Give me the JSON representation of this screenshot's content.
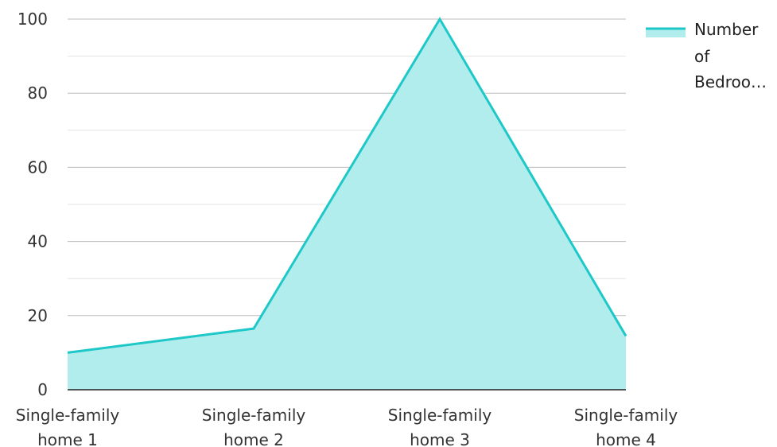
{
  "chart_data": {
    "type": "area",
    "categories": [
      [
        "Single-family",
        "home 1"
      ],
      [
        "Single-family",
        "home 2"
      ],
      [
        "Single-family",
        "home 3"
      ],
      [
        "Single-family",
        "home 4"
      ]
    ],
    "series": [
      {
        "name": "Number of Bedroo…",
        "values": [
          10,
          16.5,
          100,
          14.5
        ]
      }
    ],
    "legend": {
      "position": "top-right",
      "lines": [
        "Number",
        "of",
        "Bedroo…"
      ]
    },
    "yticks": [
      "0",
      "20",
      "40",
      "60",
      "80",
      "100"
    ],
    "ylim": [
      0,
      100
    ],
    "grid": true,
    "colors": {
      "line": "#1ec8c8",
      "fill": "#b2eded",
      "grid_major": "#bdbdbd",
      "grid_minor": "#e3e3e3",
      "axis": "#222222"
    }
  }
}
